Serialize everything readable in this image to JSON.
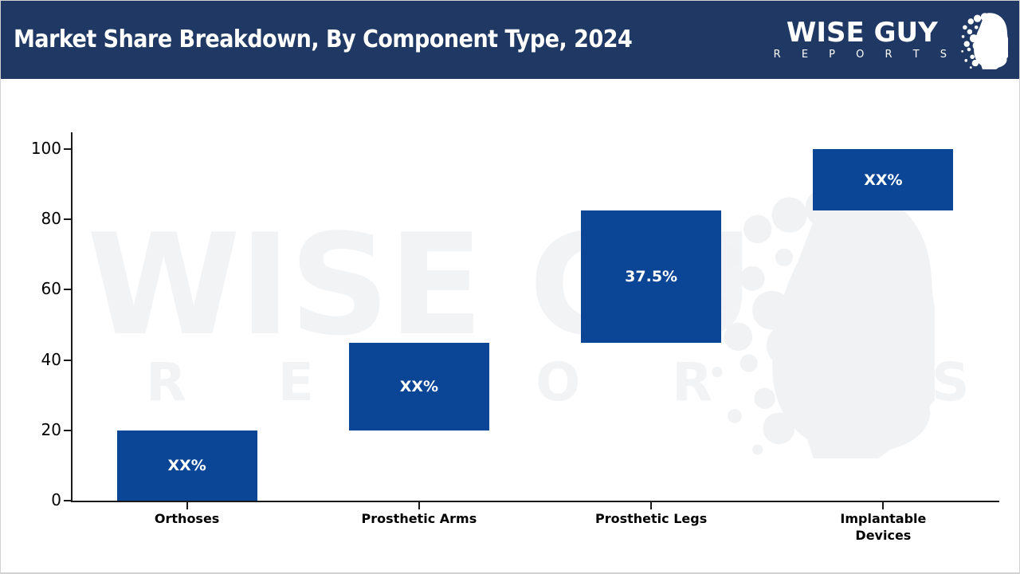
{
  "header": {
    "title": "Market Share Breakdown, By Component Type, 2024",
    "logo_name": "WISE GUY",
    "logo_sub": "R E P O R T S"
  },
  "watermark": {
    "line1": "WISE GU",
    "line2": "R E P O R T S"
  },
  "colors": {
    "header_bg": "#1f3864",
    "bar": "#0b4696",
    "grid": "#dcdcdc",
    "axis": "#1a1a1a",
    "watermark": "#f2f3f5",
    "bar_label": "#ffffff"
  },
  "chart_data": {
    "type": "bar",
    "subtype": "floating-waterfall",
    "title": "Market Share Breakdown, By Component Type, 2024",
    "categories": [
      "Orthoses",
      "Prosthetic Arms",
      "Prosthetic Legs",
      "Implantable\nDevices"
    ],
    "series": [
      {
        "name": "Market Share (%)",
        "segments": [
          {
            "category": "Orthoses",
            "start": 0,
            "end": 20,
            "label": "XX%"
          },
          {
            "category": "Prosthetic Arms",
            "start": 20,
            "end": 45,
            "label": "XX%"
          },
          {
            "category": "Prosthetic Legs",
            "start": 45,
            "end": 82.5,
            "label": "37.5%"
          },
          {
            "category": "Implantable Devices",
            "start": 82.5,
            "end": 100,
            "label": "XX%"
          }
        ]
      }
    ],
    "xlabel": "",
    "ylabel": "",
    "ylim": [
      0,
      100
    ],
    "yticks": [
      0,
      20,
      40,
      60,
      80,
      100
    ],
    "grid": "horizontal-dashed",
    "legend": "none"
  }
}
